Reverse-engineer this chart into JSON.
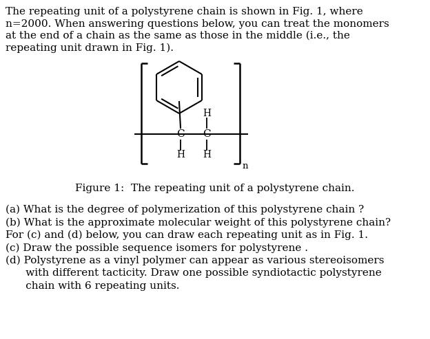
{
  "bg_color": "#ffffff",
  "text_color": "#000000",
  "fig_width": 6.24,
  "fig_height": 4.93,
  "dpi": 100,
  "line1": "The repeating unit of a polystyrene chain is shown in Fig. 1, where",
  "line2": "n=2000. When answering questions below, you can treat the monomers",
  "line3": "at the end of a chain as the same as those in the middle (i.e., the",
  "line4": "repeating unit drawn in Fig. 1).",
  "figure_caption": "Figure 1:  The repeating unit of a polystyrene chain.",
  "q1": "(a) What is the degree of polymerization of this polystyrene chain ?",
  "q2": "(b) What is the approximate molecular weight of this polystyrene chain?",
  "q3": "For (c) and (d) below, you can draw each repeating unit as in Fig. 1.",
  "q4": "(c) Draw the possible sequence isomers for polystyrene .",
  "q5": "(d) Polystyrene as a vinyl polymer can appear as various stereoisomers",
  "q6": "      with different tacticity. Draw one possible syndiotactic polystyrene",
  "q7": "      chain with 6 repeating units.",
  "font_size": 11.0,
  "font_size_caption": 11.0
}
